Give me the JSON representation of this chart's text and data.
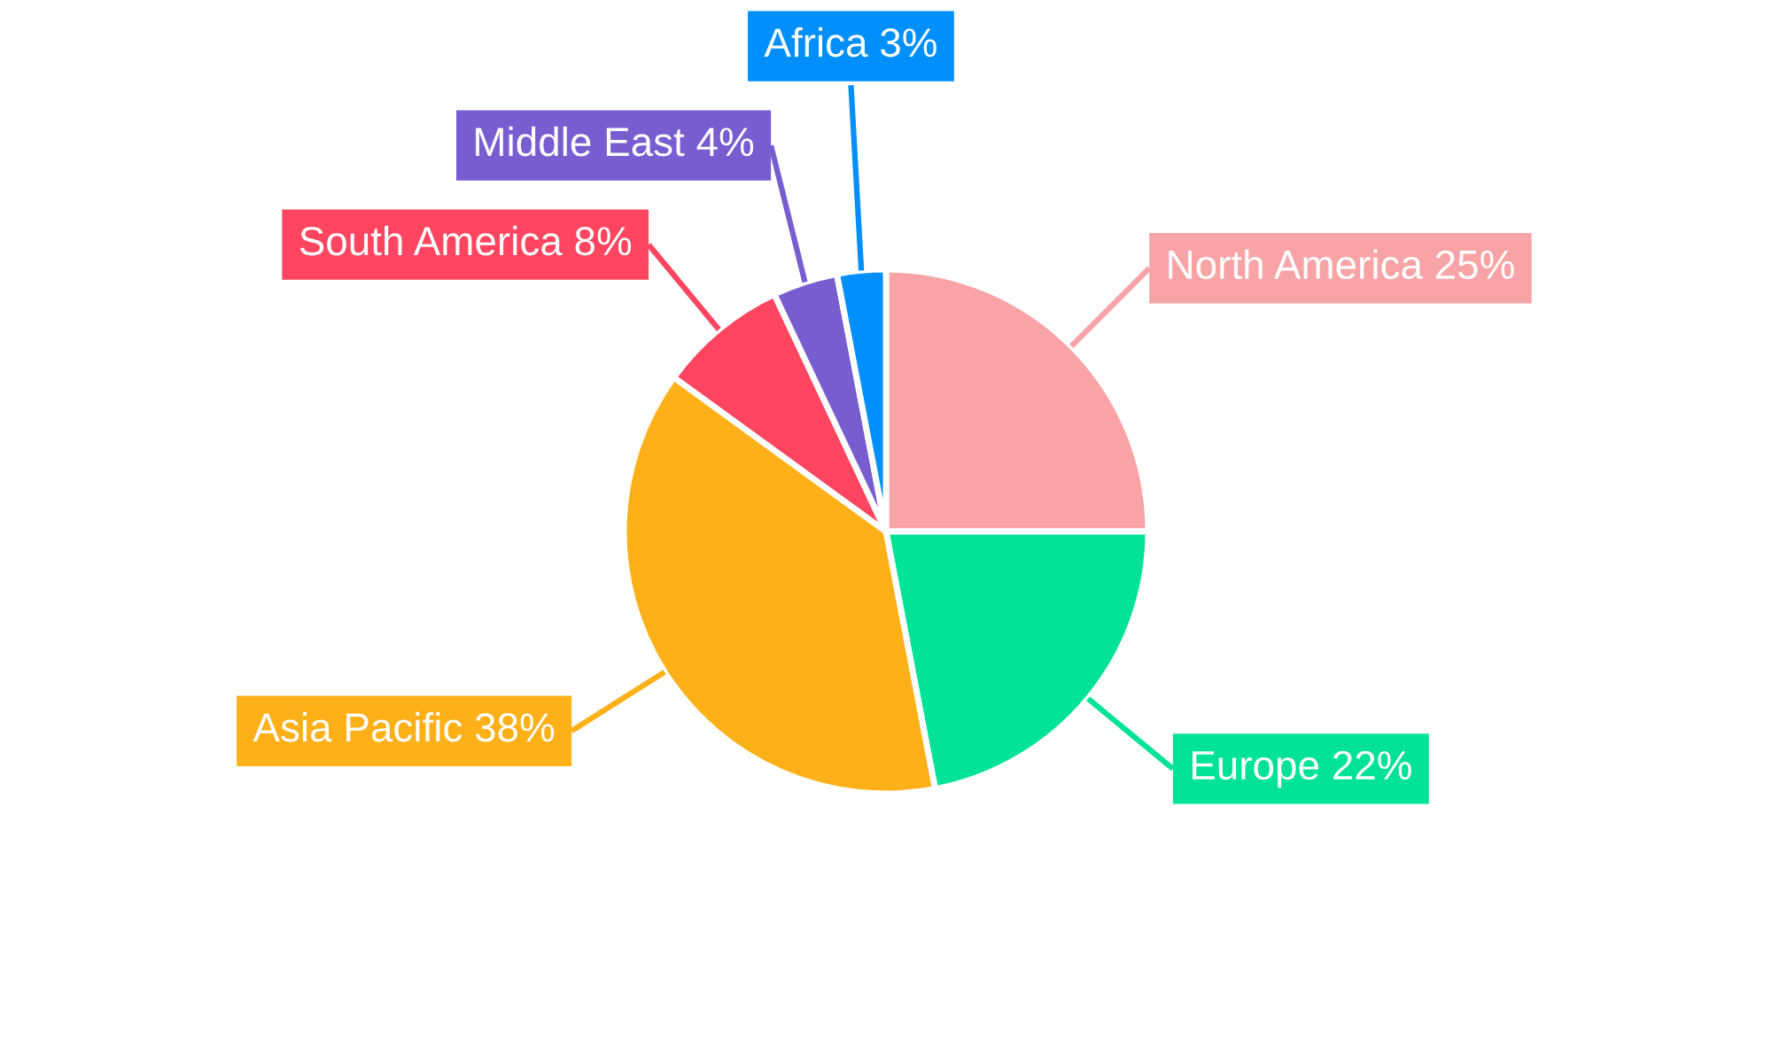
{
  "chart_data": {
    "type": "pie",
    "categories": [
      "North America",
      "Europe",
      "Asia Pacific",
      "South America",
      "Middle East",
      "Africa"
    ],
    "values": [
      25,
      22,
      38,
      8,
      4,
      3
    ],
    "colors": [
      "#f8a3a6",
      "#00e396",
      "#feb019",
      "#ff4560",
      "#775dd0",
      "#008ffb"
    ],
    "value_labels": [
      "25%",
      "22%",
      "38%",
      "8%",
      "4%",
      "3%"
    ]
  }
}
